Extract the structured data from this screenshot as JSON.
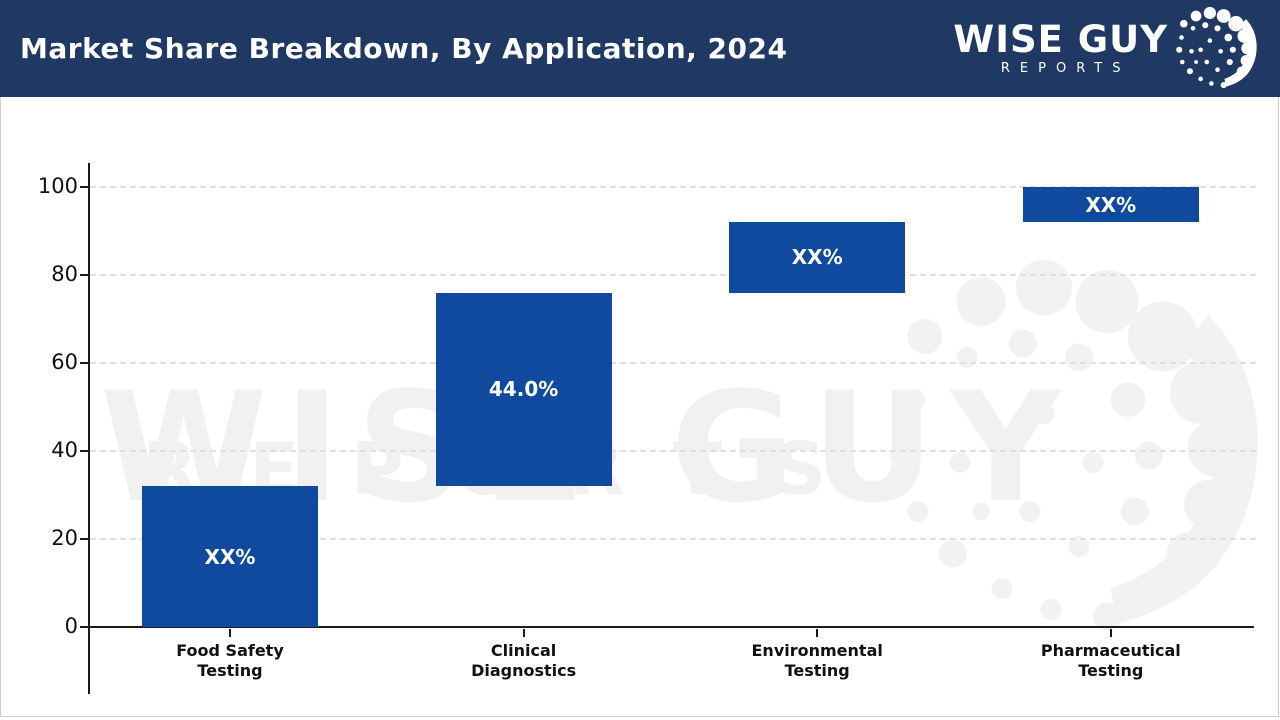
{
  "header": {
    "title": "Market Share Breakdown, By Application, 2024",
    "logo": {
      "line1": "WISE GUY",
      "line2": "REPORTS"
    }
  },
  "watermark": {
    "line1": "WISE GUY",
    "line2": "REPORTS"
  },
  "chart_data": {
    "type": "bar",
    "subtype": "waterfall",
    "title": "Market Share Breakdown, By Application, 2024",
    "categories": [
      "Food Safety Testing",
      "Clinical Diagnostics",
      "Environmental Testing",
      "Pharmaceutical Testing"
    ],
    "category_label_lines": [
      [
        "Food Safety",
        "Testing"
      ],
      [
        "Clinical",
        "Diagnostics"
      ],
      [
        "Environmental",
        "Testing"
      ],
      [
        "Pharmaceutical",
        "Testing"
      ]
    ],
    "segments": [
      {
        "category": "Food Safety Testing",
        "start": 0,
        "end": 32,
        "value": 32,
        "label": "XX%"
      },
      {
        "category": "Clinical Diagnostics",
        "start": 32,
        "end": 76,
        "value": 44,
        "label": "44.0%"
      },
      {
        "category": "Environmental Testing",
        "start": 76,
        "end": 92,
        "value": 16,
        "label": "XX%"
      },
      {
        "category": "Pharmaceutical Testing",
        "start": 92,
        "end": 100,
        "value": 8,
        "label": "XX%"
      }
    ],
    "yticks": [
      0,
      20,
      40,
      60,
      80,
      100
    ],
    "ylim": [
      0,
      105.5
    ],
    "xlabel": "",
    "ylabel": "",
    "grid": "horizontal-dashed",
    "legend": "none",
    "colors": {
      "bar": "#104a9e",
      "bar_label": "#ffffff",
      "axis": "#1a1a1a",
      "gridline": "#e0e0e0",
      "header_bg": "#1f3864",
      "watermark": "#f1f1f1"
    }
  }
}
